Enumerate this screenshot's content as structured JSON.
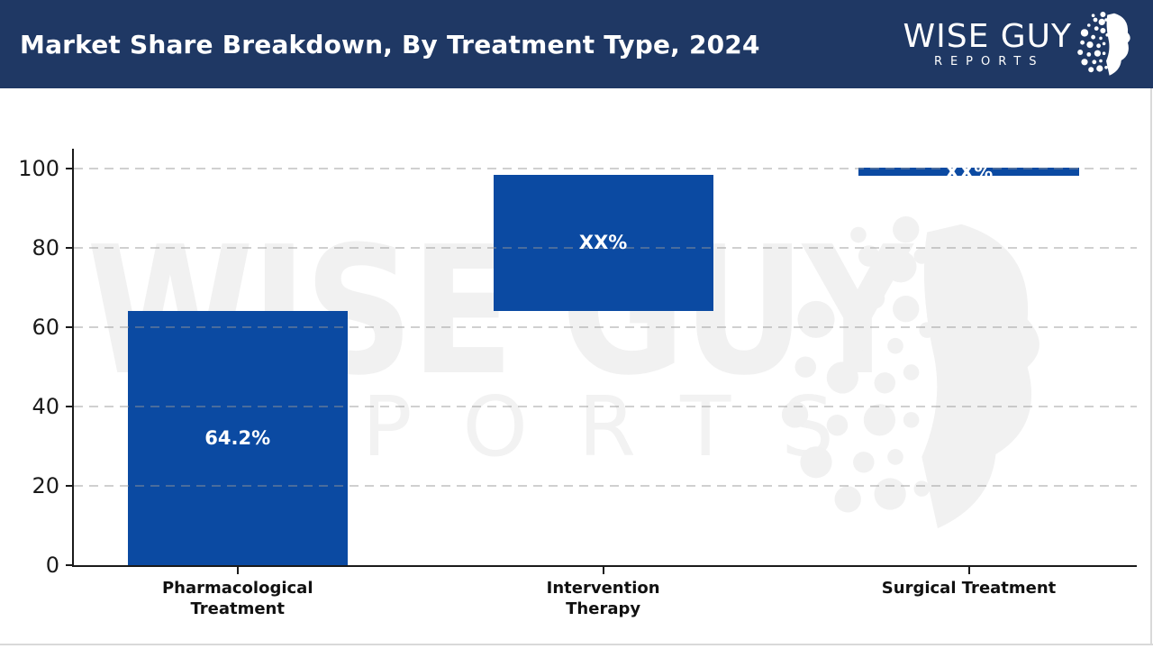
{
  "header": {
    "title": "Market Share Breakdown, By Treatment Type, 2024",
    "logo": {
      "line1": "WISE GUY",
      "line2": "REPORTS"
    }
  },
  "watermark": {
    "line1": "WISE GUY",
    "line2": "REPORTS"
  },
  "chart_data": {
    "type": "bar",
    "subtype": "waterfall-breakdown",
    "title": "Market Share Breakdown, By Treatment Type, 2024",
    "categories": [
      "Pharmacological Treatment",
      "Intervention Therapy",
      "Surgical Treatment"
    ],
    "category_display": [
      "Pharmacological\nTreatment",
      "Intervention\nTherapy",
      "Surgical Treatment"
    ],
    "segments": [
      {
        "category": "Pharmacological Treatment",
        "start": 0,
        "end": 64.2,
        "label": "64.2%"
      },
      {
        "category": "Intervention Therapy",
        "start": 64.2,
        "end": 98.5,
        "label": "XX%"
      },
      {
        "category": "Surgical Treatment",
        "start": 98.1,
        "end": 100.3,
        "label": "XX%"
      }
    ],
    "xlabel": "",
    "ylabel": "",
    "yticks": [
      0,
      20,
      40,
      60,
      80,
      100
    ],
    "ylim": [
      0,
      105
    ],
    "grid": "horizontal-dashed",
    "legend": "none",
    "bar_color": "#0b4aa2",
    "bar_label_color": "#ffffff",
    "grid_color": "#d9d9d9",
    "axis_color": "#1a1a1a"
  },
  "colors": {
    "header_bg": "#1f3864",
    "bar": "#0b4aa2",
    "watermark": "#f1f1f1",
    "frame": "#d9d9d9"
  }
}
